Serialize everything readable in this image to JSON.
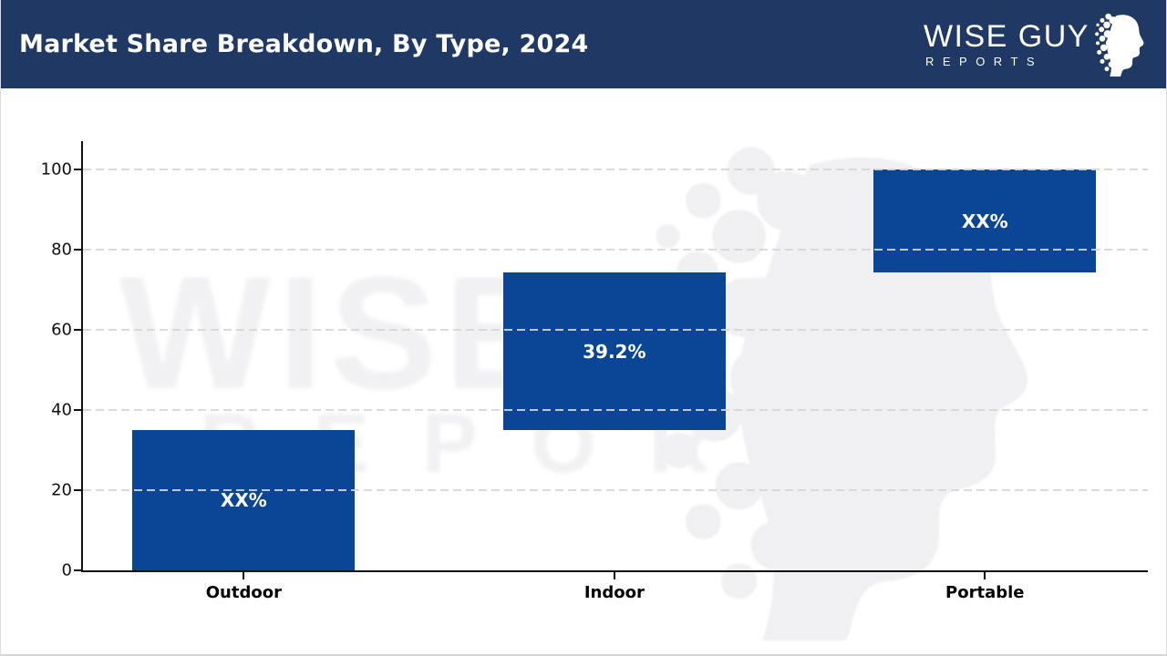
{
  "header": {
    "title": "Market Share Breakdown, By Type, 2024",
    "bg_color": "#1f3864",
    "logo": {
      "wordmark": "WISE GUY",
      "subtext": "REPORTS"
    }
  },
  "watermark": {
    "line1": "WISE GUY",
    "line2": "REPORTS"
  },
  "chart_data": {
    "type": "bar",
    "variant": "waterfall",
    "title": "Market Share Breakdown, By Type, 2024",
    "categories": [
      "Outdoor",
      "Indoor",
      "Portable"
    ],
    "segments": [
      {
        "category": "Outdoor",
        "start": 0,
        "end": 35,
        "label": "XX%"
      },
      {
        "category": "Indoor",
        "start": 35,
        "end": 74.2,
        "label": "39.2%"
      },
      {
        "category": "Portable",
        "start": 74.2,
        "end": 100,
        "label": "XX%"
      }
    ],
    "values_pct": [
      35,
      39.2,
      25.8
    ],
    "xlabel": "",
    "ylabel": "",
    "ylim": [
      0,
      107
    ],
    "yticks": [
      0,
      20,
      40,
      60,
      80,
      100
    ],
    "grid": {
      "axis": "y",
      "style": "dashed",
      "color": "#d6d6d6"
    },
    "legend": "none",
    "bar_color": "#0a4596",
    "bar_label_color": "#ffffff",
    "axis_color": "#111111"
  }
}
